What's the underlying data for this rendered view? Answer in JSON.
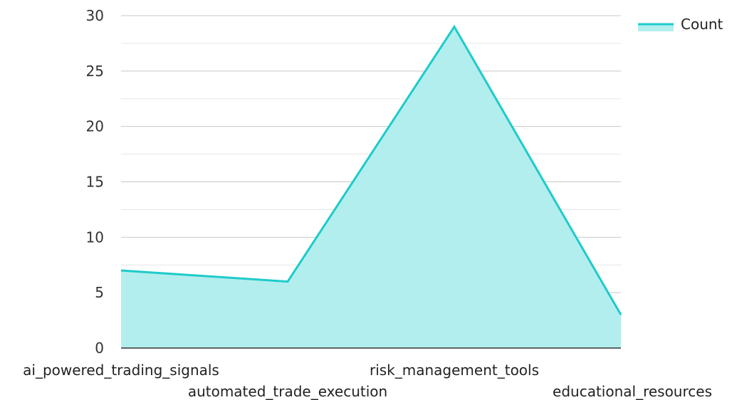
{
  "chart_data": {
    "type": "area",
    "categories": [
      "ai_powered_trading_signals",
      "automated_trade_execution",
      "risk_management_tools",
      "educational_resources"
    ],
    "series": [
      {
        "name": "Count",
        "values": [
          7,
          6,
          29,
          3
        ]
      }
    ],
    "title": "",
    "xlabel": "",
    "ylabel": "",
    "ylim": [
      0,
      30
    ],
    "yticks": [
      0,
      5,
      10,
      15,
      20,
      25,
      30
    ],
    "grid": true,
    "legend": "top-right",
    "colors": {
      "line": "#1ecbc9",
      "fill": "#b2eeee",
      "grid_major": "#c8c8c8",
      "grid_minor": "#e6e6e6",
      "axis": "#333333"
    }
  }
}
